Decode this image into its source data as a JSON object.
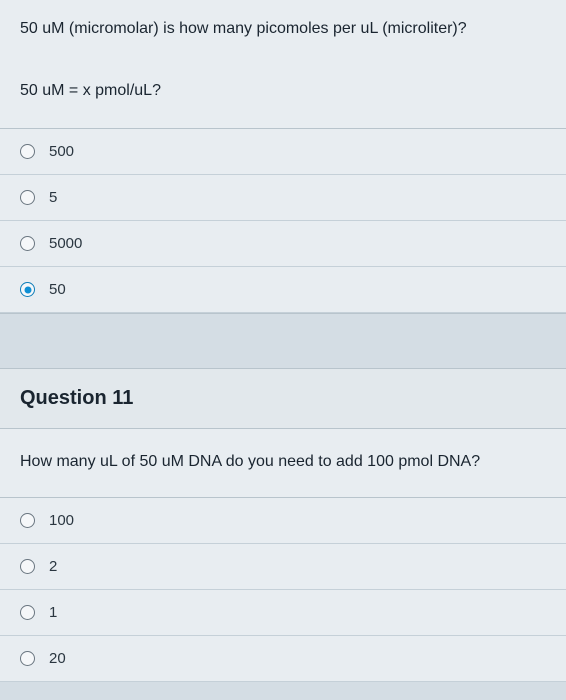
{
  "question1": {
    "main_text": "50 uM (micromolar) is how many picomoles per uL (microliter)?",
    "sub_text": "50 uM = x pmol/uL?",
    "options": [
      {
        "label": "500",
        "selected": false
      },
      {
        "label": "5",
        "selected": false
      },
      {
        "label": "5000",
        "selected": false
      },
      {
        "label": "50",
        "selected": true
      }
    ]
  },
  "question2": {
    "header": "Question 11",
    "main_text": "How many uL of 50 uM DNA do you need to add 100 pmol DNA?",
    "options": [
      {
        "label": "100",
        "selected": false
      },
      {
        "label": "2",
        "selected": false
      },
      {
        "label": "1",
        "selected": false
      },
      {
        "label": "20",
        "selected": false
      }
    ]
  },
  "colors": {
    "background": "#d4dde4",
    "panel": "#e8edf1",
    "border": "#c5d0d8",
    "text": "#1a2530",
    "radio_selected": "#0e8fd4"
  }
}
